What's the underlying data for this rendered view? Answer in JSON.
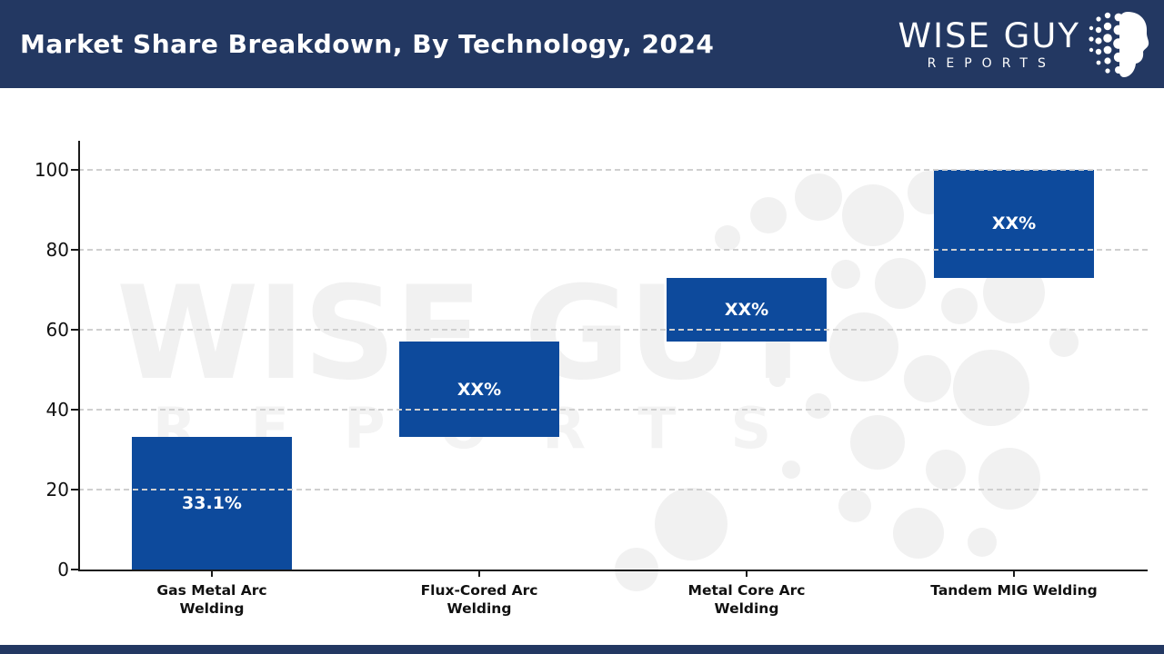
{
  "header": {
    "title": "Market Share Breakdown, By Technology, 2024",
    "bg_color": "#233862",
    "logo": {
      "line1": "WISE GUY",
      "line2": "REPORTS"
    }
  },
  "watermark": {
    "line1": "WISE GUY",
    "line2": "REPORTS"
  },
  "footer": {
    "bg_color": "#233862"
  },
  "chart_data": {
    "type": "bar",
    "subtype": "waterfall",
    "title": "Market Share Breakdown, By Technology, 2024",
    "xlabel": "",
    "ylabel": "",
    "ylim": [
      0,
      107
    ],
    "y_ticks": [
      0,
      20,
      40,
      60,
      80,
      100
    ],
    "grid": true,
    "grid_style": "dashed",
    "legend": "none",
    "bar_color": "#0d4a9c",
    "grid_color": "#cfcfcf",
    "categories": [
      "Gas Metal Arc\nWelding",
      "Flux-Cored Arc\nWelding",
      "Metal Core Arc\nWelding",
      "Tandem MIG Welding"
    ],
    "bars": [
      {
        "category": "Gas Metal Arc\nWelding",
        "start": 0,
        "end": 33.1,
        "label": "33.1%"
      },
      {
        "category": "Flux-Cored Arc\nWelding",
        "start": 33.1,
        "end": 57,
        "label": "XX%"
      },
      {
        "category": "Metal Core Arc\nWelding",
        "start": 57,
        "end": 73,
        "label": "XX%"
      },
      {
        "category": "Tandem MIG Welding",
        "start": 73,
        "end": 100,
        "label": "XX%"
      }
    ]
  }
}
